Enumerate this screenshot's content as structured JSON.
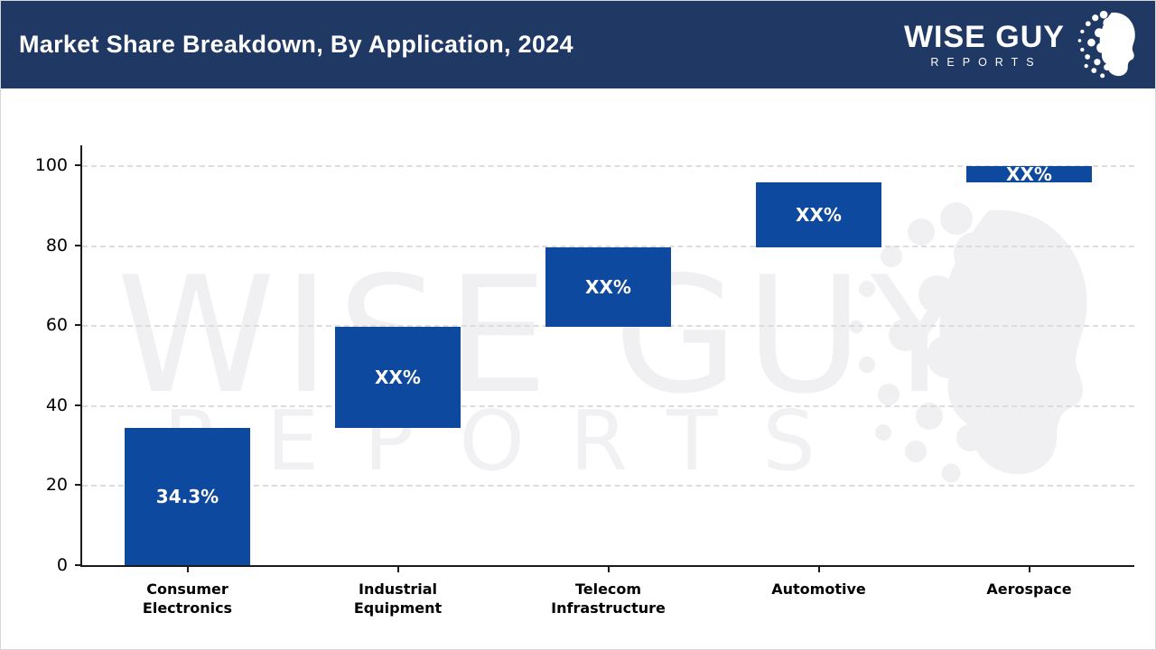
{
  "page": {
    "background": "#ffffff",
    "border_color": "#d6d6d6"
  },
  "header": {
    "background": "#1f3864",
    "title": "Market Share Breakdown, By Application, 2024",
    "brand": {
      "name": "WISE GUY",
      "sub": "REPORTS"
    }
  },
  "watermark": {
    "line1": "WISE GUY",
    "line2": "REPORTS"
  },
  "chart_data": {
    "type": "bar",
    "variant": "floating-segment waterfall",
    "title": "Market Share Breakdown, By Application, 2024",
    "categories": [
      "Consumer\nElectronics",
      "Industrial\nEquipment",
      "Telecom\nInfrastructure",
      "Automotive",
      "Aerospace"
    ],
    "segments": [
      {
        "category": "Consumer Electronics",
        "start": 0,
        "end": 34.3,
        "label": "34.3%"
      },
      {
        "category": "Industrial Equipment",
        "start": 34.3,
        "end": 59.6,
        "label": "XX%"
      },
      {
        "category": "Telecom Infrastructure",
        "start": 59.6,
        "end": 79.4,
        "label": "XX%"
      },
      {
        "category": "Automotive",
        "start": 79.4,
        "end": 95.7,
        "label": "XX%"
      },
      {
        "category": "Aerospace",
        "start": 95.7,
        "end": 99.8,
        "label": "XX%"
      }
    ],
    "yticks": [
      0,
      20,
      40,
      60,
      80,
      100
    ],
    "ylim": [
      0,
      105
    ],
    "xlabel": "",
    "ylabel": "",
    "legend": "none",
    "grid": "horizontal dashed",
    "bar_width_fraction": 0.6,
    "bar_color": "#0d4a9f",
    "bar_label_color": "#ffffff",
    "axis_color": "#1a1a1a",
    "gridline_color": "#dcdcdc"
  }
}
